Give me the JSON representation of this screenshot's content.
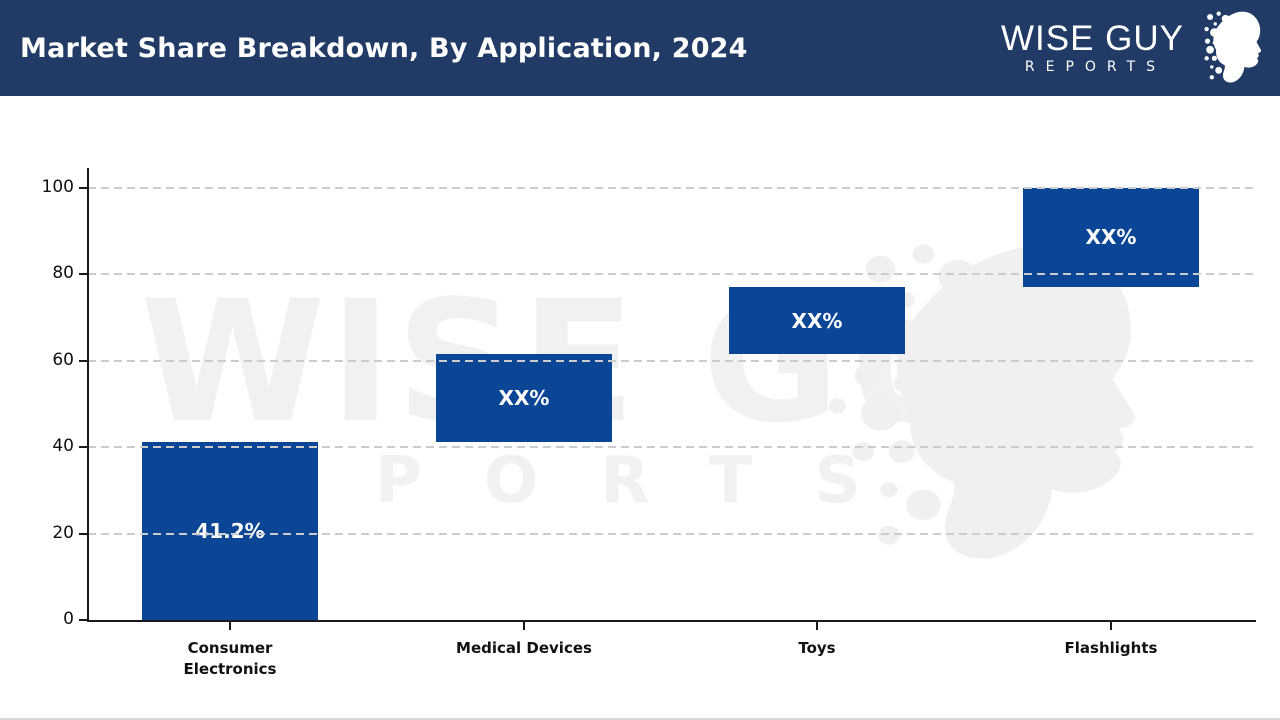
{
  "header": {
    "title": "Market Share Breakdown, By Application, 2024",
    "bg_color": "#213a66",
    "logo": {
      "line1": "WISE GUY",
      "line2": "REPORTS"
    }
  },
  "watermark": {
    "line1": "WISE GUY",
    "line2": "REPORTS"
  },
  "chart_data": {
    "type": "bar",
    "subtype": "waterfall",
    "title": "Market Share Breakdown, By Application, 2024",
    "categories": [
      "Consumer Electronics",
      "Medical Devices",
      "Toys",
      "Flashlights"
    ],
    "segments": [
      {
        "category": "Consumer Electronics",
        "start": 0,
        "end": 41.2,
        "label": "41.2%"
      },
      {
        "category": "Medical Devices",
        "start": 41.2,
        "end": 61.5,
        "label": "XX%"
      },
      {
        "category": "Toys",
        "start": 61.5,
        "end": 77.1,
        "label": "XX%"
      },
      {
        "category": "Flashlights",
        "start": 77.1,
        "end": 100,
        "label": "XX%"
      }
    ],
    "xlabel": "",
    "ylabel": "",
    "ylim": [
      0,
      100
    ],
    "yticks": [
      0,
      20,
      40,
      60,
      80,
      100
    ],
    "grid": "dashed-horizontal-above-bars",
    "legend": "none",
    "bar_color": "#0b4596",
    "bar_label_color": "#ffffff",
    "grid_color": "#cccccc",
    "axis_color": "#1a1a1a"
  }
}
